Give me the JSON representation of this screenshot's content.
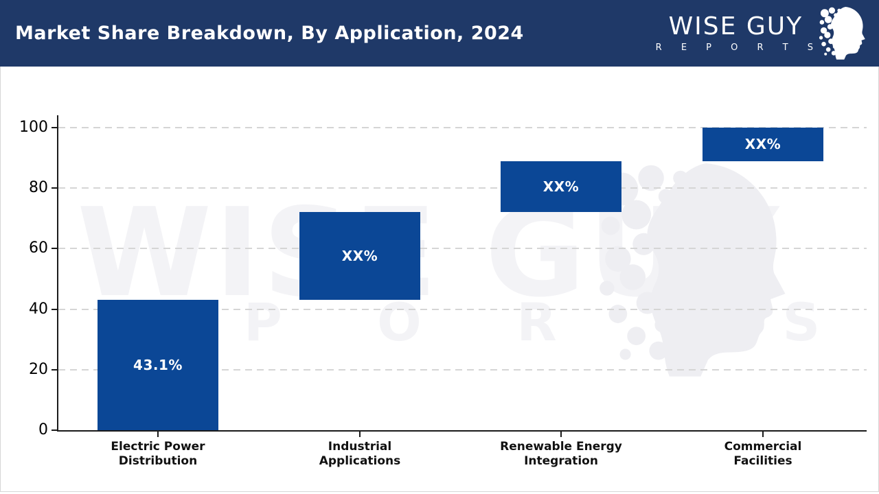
{
  "header": {
    "title": "Market Share Breakdown, By Application, 2024",
    "logo": {
      "line1": "WISE GUY",
      "line2": "R E P O R T S"
    },
    "bg_color": "#1f3968"
  },
  "watermark": {
    "line1": "WISE GUY",
    "line2": "P O R T S"
  },
  "chart_data": {
    "type": "bar",
    "subtype": "waterfall",
    "title": "Market Share Breakdown, By Application, 2024",
    "categories": [
      "Electric Power Distribution",
      "Industrial Applications",
      "Renewable Energy Integration",
      "Commercial Facilities"
    ],
    "segments": [
      {
        "category_lines": [
          "Electric Power",
          "Distribution"
        ],
        "start": 0,
        "end": 43.1,
        "label": "43.1%"
      },
      {
        "category_lines": [
          "Industrial",
          "Applications"
        ],
        "start": 43.1,
        "end": 72.1,
        "label": "XX%"
      },
      {
        "category_lines": [
          "Renewable Energy",
          "Integration"
        ],
        "start": 72.1,
        "end": 89,
        "label": "XX%"
      },
      {
        "category_lines": [
          "Commercial",
          "Facilities"
        ],
        "start": 89,
        "end": 100,
        "label": "XX%"
      }
    ],
    "yticks": [
      0,
      20,
      40,
      60,
      80,
      100
    ],
    "ylim": [
      0,
      100
    ],
    "grid": "dashed horizontal",
    "legend": "none",
    "bar_color": "#0b4796",
    "label_color": "#ffffff",
    "axis_color": "#1a1a1a",
    "gridline_color": "#d5d5d5"
  }
}
